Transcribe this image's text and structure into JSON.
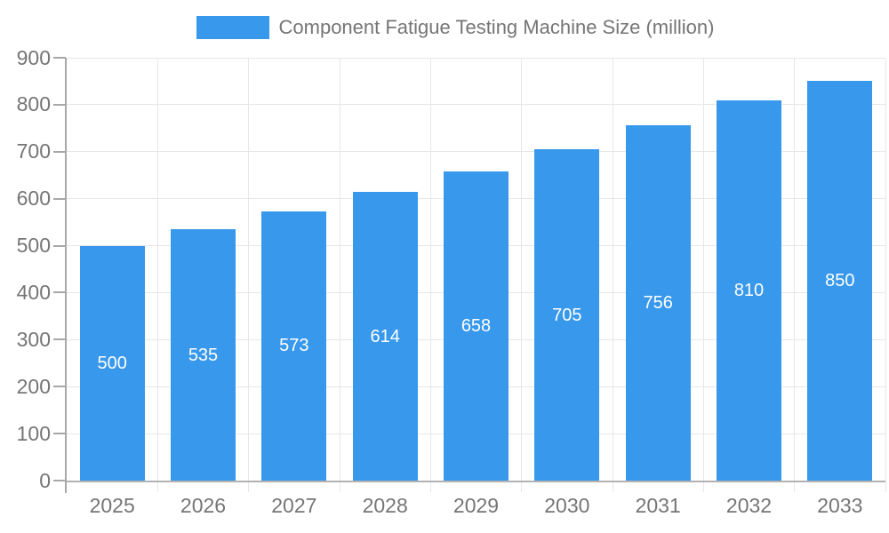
{
  "chart_data": {
    "type": "bar",
    "title": "Component Fatigue Testing Machine Size (million)",
    "categories": [
      "2025",
      "2026",
      "2027",
      "2028",
      "2029",
      "2030",
      "2031",
      "2032",
      "2033"
    ],
    "values": [
      500,
      535,
      573,
      614,
      658,
      705,
      756,
      810,
      850
    ],
    "xlabel": "",
    "ylabel": "",
    "ylim": [
      0,
      900
    ],
    "ytick_step": 100,
    "ytick_labels": [
      "0",
      "100",
      "200",
      "300",
      "400",
      "500",
      "600",
      "700",
      "800",
      "900"
    ],
    "grid": true,
    "legend_position": "top-center",
    "bar_labels_visible": true
  },
  "colors": {
    "bar": "#3898EC",
    "bar_label": "#FFFFFF",
    "axis_text": "#757575",
    "axis_line": "#A8A8A8",
    "baseline": "#B2B2B2",
    "gridline": "#E7E7E7",
    "background": "#FFFFFF"
  }
}
